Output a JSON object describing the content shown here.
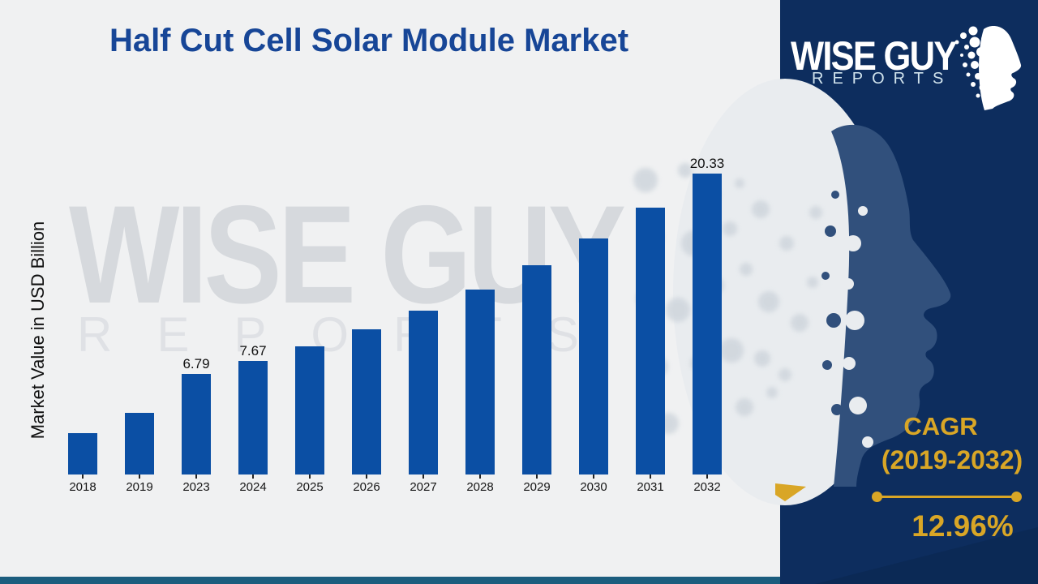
{
  "chart_data": {
    "type": "bar",
    "title": "Half Cut Cell Solar Module Market",
    "ylabel": "Market Value in USD Billion",
    "xlabel": "",
    "categories": [
      "2018",
      "2019",
      "2023",
      "2024",
      "2025",
      "2026",
      "2027",
      "2028",
      "2029",
      "2030",
      "2031",
      "2032"
    ],
    "values": [
      2.79,
      4.17,
      6.79,
      7.67,
      8.66,
      9.79,
      11.05,
      12.49,
      14.11,
      15.93,
      18.0,
      20.33
    ],
    "data_labels": {
      "2023": "6.79",
      "2024": "7.67",
      "2032": "20.33"
    },
    "ylim": [
      0,
      21
    ],
    "grid": false,
    "legend": false,
    "bar_color": "#0b4fa4"
  },
  "brand": {
    "name_line1": "WISE GUY",
    "name_line2": "REPORTS"
  },
  "watermark": {
    "line1": "WISE GUY",
    "line2": "REPORTS"
  },
  "cagr": {
    "label": "CAGR",
    "period": "(2019-2032)",
    "value": "12.96%"
  },
  "colors": {
    "bar_blue": "#0b4fa4",
    "title_blue": "#174697",
    "panel_navy": "#0d2d5e",
    "accent_gold": "#d9a626",
    "footer_teal": "#1b5d7e",
    "page_bg": "#f0f1f2"
  }
}
